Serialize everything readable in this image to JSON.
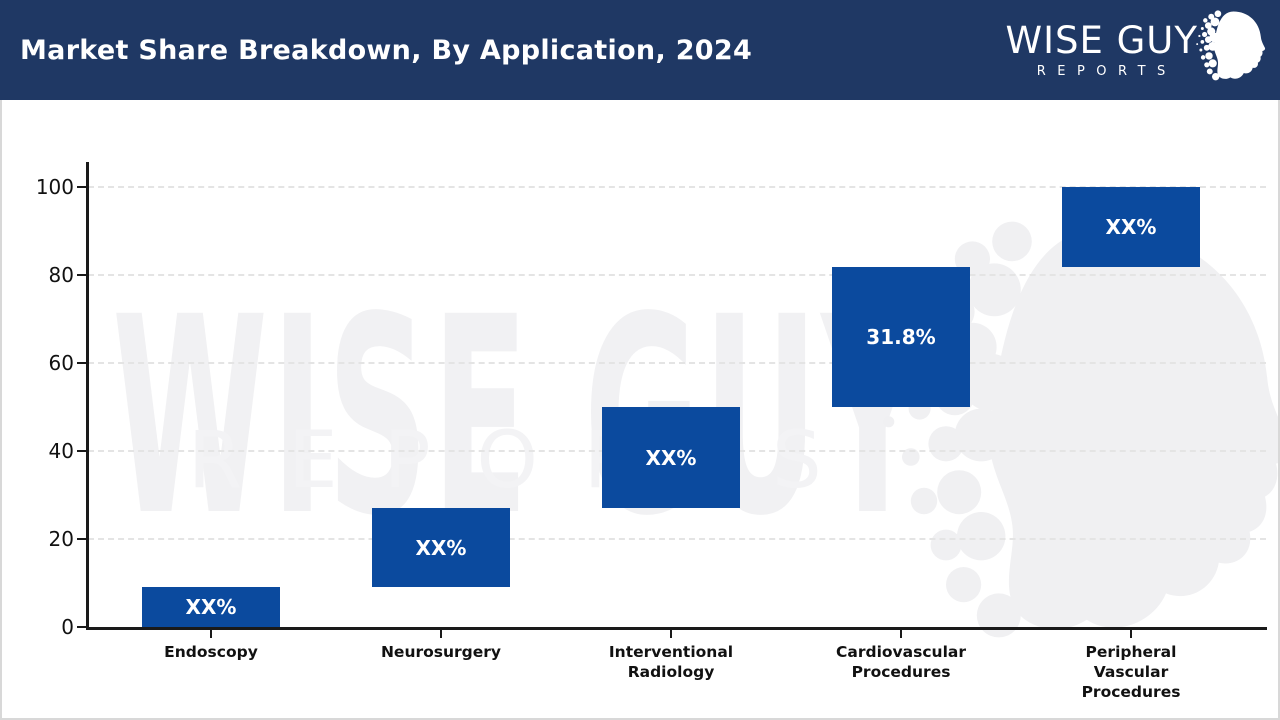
{
  "header": {
    "title": "Market Share Breakdown, By Application, 2024",
    "logo": {
      "title": "WISE GUY",
      "subtitle": "REPORTS"
    }
  },
  "watermark": {
    "title": "WISE GUY",
    "subtitle": "REPORTS"
  },
  "chart_data": {
    "type": "bar",
    "subtype": "waterfall-floating-bars",
    "title": "Market Share Breakdown, By Application, 2024",
    "xlabel": "",
    "ylabel": "",
    "ylim": [
      0,
      105
    ],
    "yticks": [
      0,
      20,
      40,
      60,
      80,
      100
    ],
    "grid": "horizontal-dashed",
    "legend": "none",
    "bar_color": "#0b4a9e",
    "bar_label_color": "#ffffff",
    "categories": [
      "Endoscopy",
      "Neurosurgery",
      "Interventional Radiology",
      "Cardiovascular Procedures",
      "Peripheral Vascular Procedures"
    ],
    "bars": [
      {
        "category": "Endoscopy",
        "category_lines": [
          "Endoscopy"
        ],
        "start": 0,
        "end": 9,
        "value": 9,
        "label": "XX%"
      },
      {
        "category": "Neurosurgery",
        "category_lines": [
          "Neurosurgery"
        ],
        "start": 9,
        "end": 27,
        "value": 18,
        "label": "XX%"
      },
      {
        "category": "Interventional Radiology",
        "category_lines": [
          "Interventional",
          "Radiology"
        ],
        "start": 27,
        "end": 50,
        "value": 23,
        "label": "XX%"
      },
      {
        "category": "Cardiovascular Procedures",
        "category_lines": [
          "Cardiovascular",
          "Procedures"
        ],
        "start": 50,
        "end": 81.8,
        "value": 31.8,
        "label": "31.8%"
      },
      {
        "category": "Peripheral Vascular Procedures",
        "category_lines": [
          "Peripheral",
          "Vascular",
          "Procedures"
        ],
        "start": 81.8,
        "end": 100,
        "value": 18.2,
        "label": "XX%"
      }
    ]
  },
  "colors": {
    "header_bg": "#1f3864",
    "bar": "#0b4a9e",
    "grid": "#e4e4e4",
    "axis": "#1a1a1a",
    "watermark": "#f1f1f3",
    "frame_border": "#d8d8d8"
  }
}
